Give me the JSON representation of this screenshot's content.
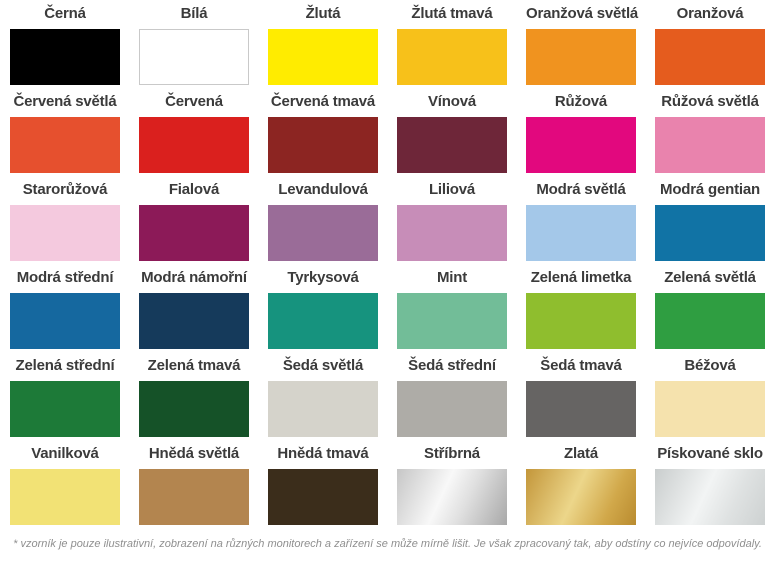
{
  "palette": {
    "columns": 6,
    "items": [
      {
        "name": "cerna",
        "label": "Černá",
        "color": "#000000"
      },
      {
        "name": "bila",
        "label": "Bílá",
        "color": "#ffffff",
        "border": "#c9c9c9"
      },
      {
        "name": "zluta",
        "label": "Žlutá",
        "color": "#ffec00"
      },
      {
        "name": "zluta-tmava",
        "label": "Žlutá tmavá",
        "color": "#f7c11a"
      },
      {
        "name": "oranzova-svetla",
        "label": "Oranžová světlá",
        "color": "#f0931f"
      },
      {
        "name": "oranzova",
        "label": "Oranžová",
        "color": "#e55c1e"
      },
      {
        "name": "cervena-svetla",
        "label": "Červená světlá",
        "color": "#e6502e"
      },
      {
        "name": "cervena",
        "label": "Červená",
        "color": "#da201e"
      },
      {
        "name": "cervena-tmava",
        "label": "Červená tmavá",
        "color": "#8c2522"
      },
      {
        "name": "vinova",
        "label": "Vínová",
        "color": "#6e2639"
      },
      {
        "name": "ruzova",
        "label": "Růžová",
        "color": "#e2087e"
      },
      {
        "name": "ruzova-svetla",
        "label": "Růžová světlá",
        "color": "#e983ad"
      },
      {
        "name": "staroruzova",
        "label": "Starorůžová",
        "color": "#f4c9de"
      },
      {
        "name": "fialova",
        "label": "Fialová",
        "color": "#8c1a58"
      },
      {
        "name": "levandulova",
        "label": "Levandulová",
        "color": "#9a6c98"
      },
      {
        "name": "liliova",
        "label": "Liliová",
        "color": "#c78db8"
      },
      {
        "name": "modra-svetla",
        "label": "Modrá světlá",
        "color": "#a4c8e9"
      },
      {
        "name": "modra-gentian",
        "label": "Modrá gentian",
        "color": "#1173a5"
      },
      {
        "name": "modra-stredni",
        "label": "Modrá střední",
        "color": "#15689f"
      },
      {
        "name": "modra-namorni",
        "label": "Modrá námořní",
        "color": "#153a5b"
      },
      {
        "name": "tyrkysova",
        "label": "Tyrkysová",
        "color": "#16937e"
      },
      {
        "name": "mint",
        "label": "Mint",
        "color": "#72bd98"
      },
      {
        "name": "zelena-limetka",
        "label": "Zelená limetka",
        "color": "#8fbe2e"
      },
      {
        "name": "zelena-svetla",
        "label": "Zelená světlá",
        "color": "#2f9e41"
      },
      {
        "name": "zelena-stredni",
        "label": "Zelená střední",
        "color": "#1d7a38"
      },
      {
        "name": "zelena-tmava",
        "label": "Zelená tmavá",
        "color": "#155228"
      },
      {
        "name": "seda-svetla",
        "label": "Šedá světlá",
        "color": "#d5d3cb"
      },
      {
        "name": "seda-stredni",
        "label": "Šedá střední",
        "color": "#aeaca7"
      },
      {
        "name": "seda-tmava",
        "label": "Šedá tmavá",
        "color": "#666463"
      },
      {
        "name": "bezova",
        "label": "Béžová",
        "color": "#f5e2ad"
      },
      {
        "name": "vanilkova",
        "label": "Vanilková",
        "color": "#f2e275"
      },
      {
        "name": "hneda-svetla",
        "label": "Hnědá světlá",
        "color": "#b3854f"
      },
      {
        "name": "hneda-tmava",
        "label": "Hnědá tmavá",
        "color": "#3b2d1b"
      },
      {
        "name": "stribrna",
        "label": "Stříbrná",
        "gradient": [
          "#c6c6c6 0%",
          "#f8f8f8 42%",
          "#e0e0e0 62%",
          "#a8a8a8 100%"
        ],
        "angle": 115
      },
      {
        "name": "zlata",
        "label": "Zlatá",
        "gradient": [
          "#c3963a 0%",
          "#ecd68a 45%",
          "#d1a84a 75%",
          "#b98b2f 100%"
        ],
        "angle": 115
      },
      {
        "name": "piskovane-sklo",
        "label": "Pískované sklo",
        "gradient": [
          "#c9cdcd 0%",
          "#f2f4f4 45%",
          "#dfe2e2 70%",
          "#cdd1d1 100%"
        ],
        "angle": 115
      }
    ]
  },
  "footnote": "* vzorník je pouze ilustrativní, zobrazení na různých monitorech a zařízení se může mírně lišit. Je však zpracovaný tak, aby odstíny co nejvíce odpovídaly."
}
